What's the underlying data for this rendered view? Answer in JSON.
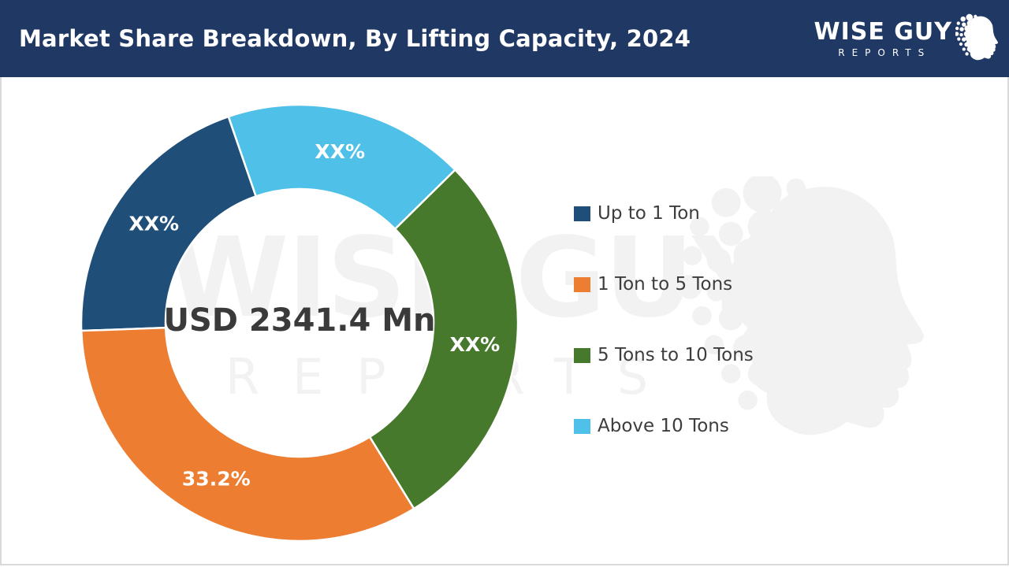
{
  "header": {
    "title": "Market Share Breakdown, By Lifting Capacity, 2024",
    "bg_color": "#203864",
    "brand": {
      "line1": "WISE GUY",
      "line2": "REPORTS"
    }
  },
  "watermark": {
    "line1": "WISE GUY",
    "line2": "REPORTS"
  },
  "chart_data": {
    "type": "pie",
    "subtype": "donut",
    "title": "Market Share Breakdown, By Lifting Capacity, 2024",
    "center_label": "USD 2341.4 Mn",
    "legend_position": "right",
    "start_angle_deg": 109,
    "direction": "counterclockwise",
    "inner_radius_ratio": 0.61,
    "segments": [
      {
        "label": "Up to 1 Ton",
        "color": "#1f4e79",
        "value_pct_est": 20.3,
        "value_label": "XX%"
      },
      {
        "label": "1 Ton to 5 Tons",
        "color": "#ed7d31",
        "value_pct_est": 33.2,
        "value_label": "33.2%"
      },
      {
        "label": "5 Tons to 10 Tons",
        "color": "#47792c",
        "value_pct_est": 28.6,
        "value_label": "XX%"
      },
      {
        "label": "Above 10 Tons",
        "color": "#4fc0e8",
        "value_pct_est": 17.9,
        "value_label": "XX%"
      }
    ]
  }
}
